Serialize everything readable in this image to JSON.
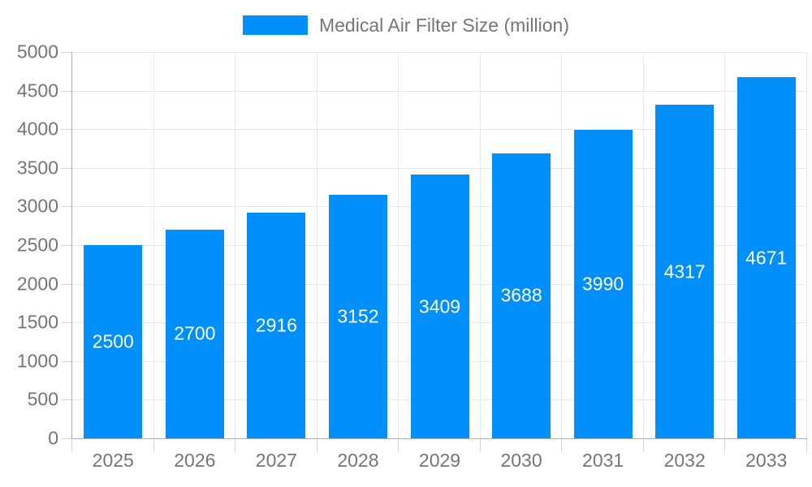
{
  "legend": {
    "label": "Medical Air Filter Size (million)"
  },
  "chart_data": {
    "type": "bar",
    "title": "Medical Air Filter Size (million)",
    "categories": [
      "2025",
      "2026",
      "2027",
      "2028",
      "2029",
      "2030",
      "2031",
      "2032",
      "2033"
    ],
    "values": [
      2500,
      2700,
      2916,
      3152,
      3409,
      3688,
      3990,
      4317,
      4671
    ],
    "xlabel": "",
    "ylabel": "",
    "ylim": [
      0,
      5000
    ],
    "ytick_step": 500,
    "grid": true,
    "legend_position": "top-center",
    "value_labels": "inside-middle",
    "colors": {
      "bar": "#008FFB",
      "value_label": "#ffffff",
      "axis_text": "#757575",
      "gridline": "#e7e7e7",
      "axis_line": "#ababab",
      "tick": "#d2d2d2",
      "legend_text": "#757575"
    }
  }
}
